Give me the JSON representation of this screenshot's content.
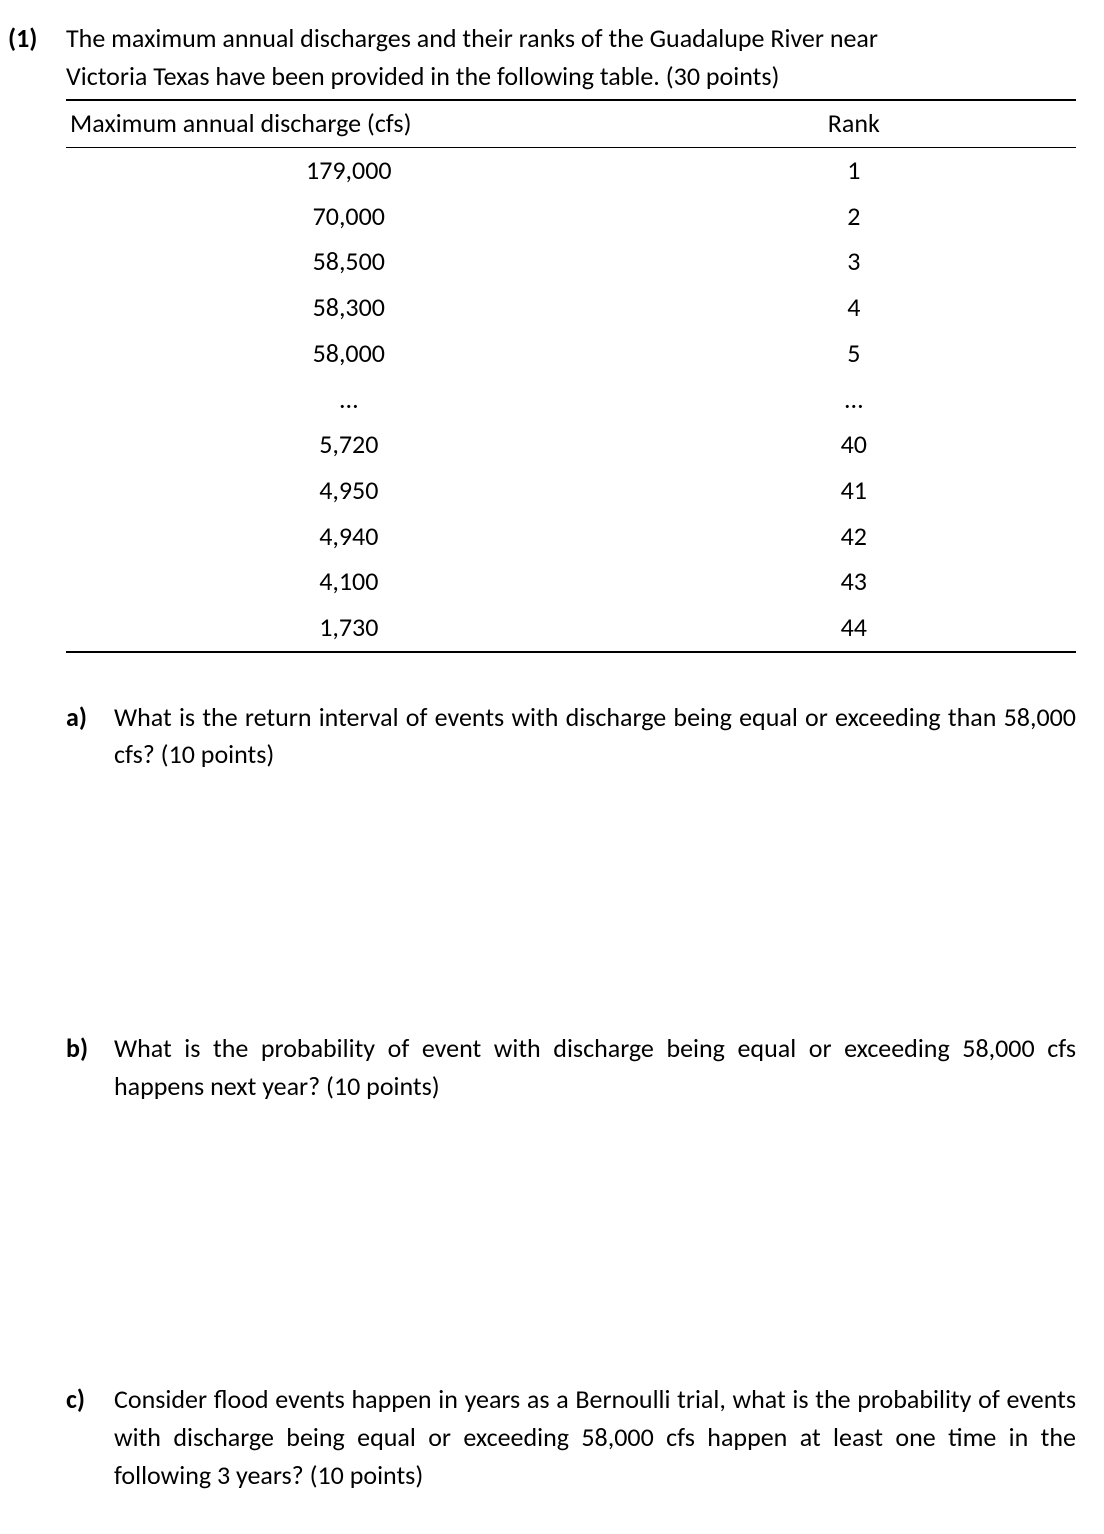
{
  "question": {
    "number": "(1)",
    "text_line1": "The maximum annual discharges and their ranks of the Guadalupe River near",
    "text_line2": "Victoria Texas have been provided in the following table. (30 points)"
  },
  "table": {
    "header_discharge": "Maximum annual discharge (cfs)",
    "header_rank": "Rank",
    "rows": [
      {
        "discharge": "179,000",
        "rank": "1"
      },
      {
        "discharge": "70,000",
        "rank": "2"
      },
      {
        "discharge": "58,500",
        "rank": "3"
      },
      {
        "discharge": "58,300",
        "rank": "4"
      },
      {
        "discharge": "58,000",
        "rank": "5"
      },
      {
        "discharge": "...",
        "rank": "..."
      },
      {
        "discharge": "5,720",
        "rank": "40"
      },
      {
        "discharge": "4,950",
        "rank": "41"
      },
      {
        "discharge": "4,940",
        "rank": "42"
      },
      {
        "discharge": "4,100",
        "rank": "43"
      },
      {
        "discharge": "1,730",
        "rank": "44"
      }
    ]
  },
  "parts": {
    "a": {
      "label": "a)",
      "text": "What is the return interval of events with discharge being equal or exceeding than 58,000 cfs? (10 points)"
    },
    "b": {
      "label": "b)",
      "text": "What is the probability of event with discharge being equal or exceeding 58,000 cfs happens next year? (10 points)"
    },
    "c": {
      "label": "c)",
      "text": "Consider flood events happen in years as a Bernoulli trial, what is the probability of events with discharge being equal or exceeding 58,000 cfs happen at least one time in the following 3 years? (10 points)"
    }
  }
}
